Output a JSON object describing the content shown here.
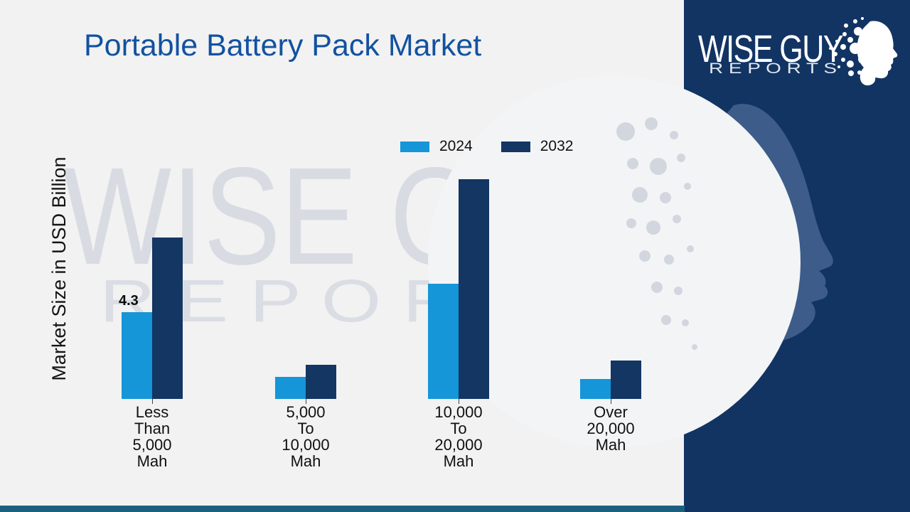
{
  "page": {
    "background_color": "#f2f2f3"
  },
  "header": {
    "title": "Portable Battery Pack Market",
    "title_color": "#12529f"
  },
  "branding": {
    "logo_line1": "WISE GUY",
    "logo_line2": "R E P O R T S",
    "watermark_line1": "WISE GUY",
    "watermark_line2": "R E P O R T S",
    "panel_color": "#123463",
    "face_silhouette_color": "#3d5c8a",
    "accent_bar_color": "#1c6080"
  },
  "chart_data": {
    "type": "bar",
    "title": "Portable Battery Pack Market",
    "ylabel": "Market Size in USD Billion",
    "xlabel": "",
    "categories": [
      "Less Than 5,000 Mah",
      "5,000 To 10,000 Mah",
      "10,000 To 20,000 Mah",
      "Over 20,000 Mah"
    ],
    "series": [
      {
        "name": "2024",
        "color": "#1496d8",
        "values": [
          4.3,
          1.1,
          5.7,
          1.0
        ]
      },
      {
        "name": "2032",
        "color": "#133663",
        "values": [
          8.0,
          1.7,
          10.9,
          1.9
        ]
      }
    ],
    "data_labels": [
      {
        "series": "2024",
        "category_index": 0,
        "text": "4.3"
      }
    ],
    "ylim": [
      0,
      12
    ],
    "grid": false,
    "legend_position": "top-center"
  }
}
